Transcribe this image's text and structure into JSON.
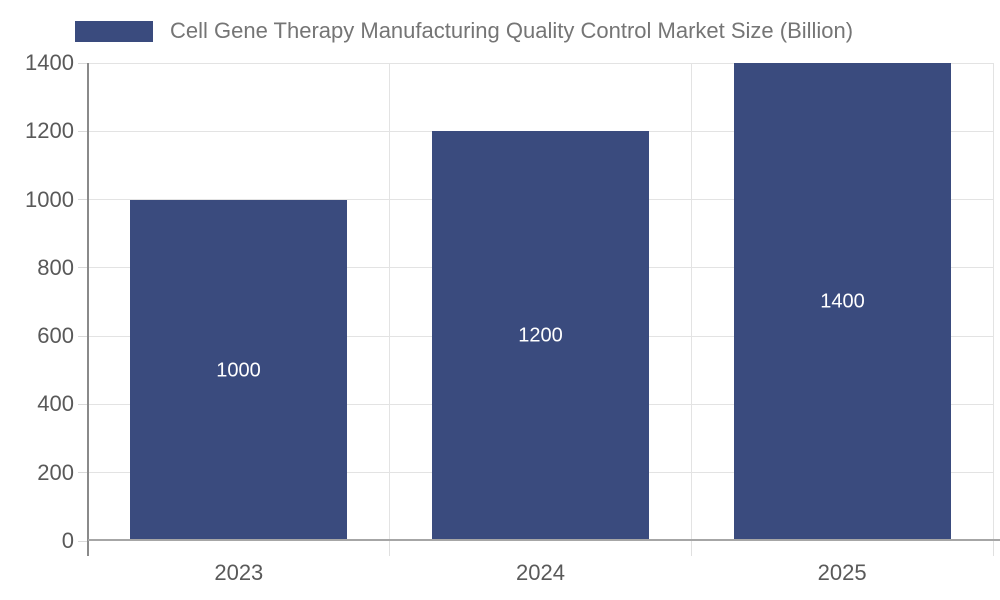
{
  "chart_data": {
    "type": "bar",
    "title": "Cell Gene Therapy Manufacturing Quality Control Market Size (Billion)",
    "categories": [
      "2023",
      "2024",
      "2025"
    ],
    "values": [
      1000,
      1200,
      1400
    ],
    "data_labels": [
      "1000",
      "1200",
      "1400"
    ],
    "xlabel": "",
    "ylabel": "",
    "ylim": [
      0,
      1400
    ],
    "yticks": [
      0,
      200,
      400,
      600,
      800,
      1000,
      1200,
      1400
    ],
    "legend_position": "top-left",
    "grid": true,
    "colors": {
      "bar": "#3A4B7E",
      "bar_label": "#ffffff",
      "tick_label": "#595959",
      "legend_text": "#757575",
      "gridline": "#e3e3e3",
      "axis": "#8a8a8a"
    }
  }
}
